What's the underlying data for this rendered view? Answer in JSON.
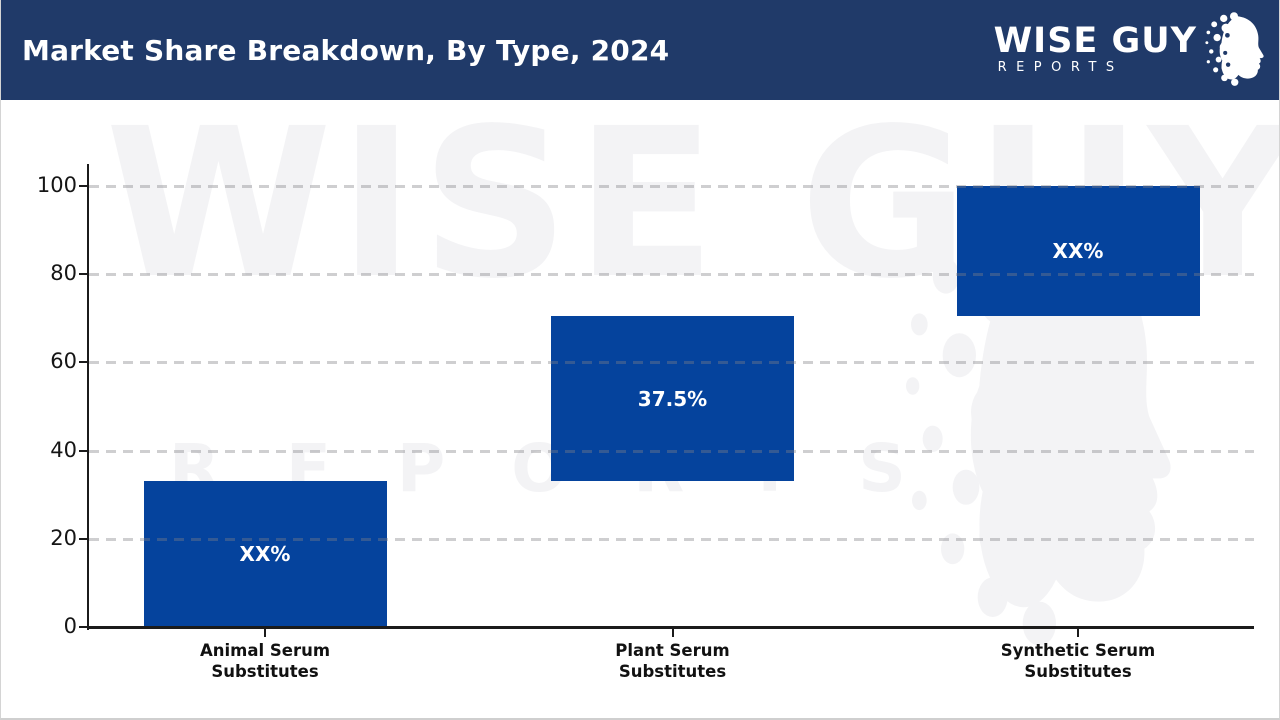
{
  "header": {
    "title": "Market Share Breakdown, By Type, 2024",
    "logo": {
      "name_top": "WISE GUY",
      "name_bottom": "REPORTS"
    }
  },
  "watermark": {
    "big_text": "WISE GUY",
    "small_text": "REPORTS"
  },
  "colors": {
    "header_bg": "#203a69",
    "bar_fill": "#05439d",
    "bar_label_text": "#ffffff",
    "axis_line": "#1b1b1b",
    "tick_label_text": "#151515",
    "watermark_gray": "#f3f3f5"
  },
  "chart_data": {
    "type": "bar",
    "variant": "floating-waterfall",
    "title": "Market Share Breakdown, By Type, 2024",
    "xlabel": "",
    "ylabel": "",
    "ylim": [
      0,
      100
    ],
    "yticks": [
      0,
      20,
      40,
      60,
      80,
      100
    ],
    "grid": "horizontal-dashed",
    "legend": "none",
    "categories": [
      "Animal Serum Substitutes",
      "Plant Serum Substitutes",
      "Synthetic Serum Substitutes"
    ],
    "category_lines": [
      [
        "Animal Serum",
        "Substitutes"
      ],
      [
        "Plant Serum",
        "Substitutes"
      ],
      [
        "Synthetic Serum",
        "Substitutes"
      ]
    ],
    "segments": [
      {
        "category": "Animal Serum Substitutes",
        "start": 0,
        "end": 33,
        "label": "XX%"
      },
      {
        "category": "Plant Serum Substitutes",
        "start": 33,
        "end": 70.5,
        "label": "37.5%"
      },
      {
        "category": "Synthetic Serum Substitutes",
        "start": 70.5,
        "end": 100,
        "label": "XX%"
      }
    ]
  }
}
